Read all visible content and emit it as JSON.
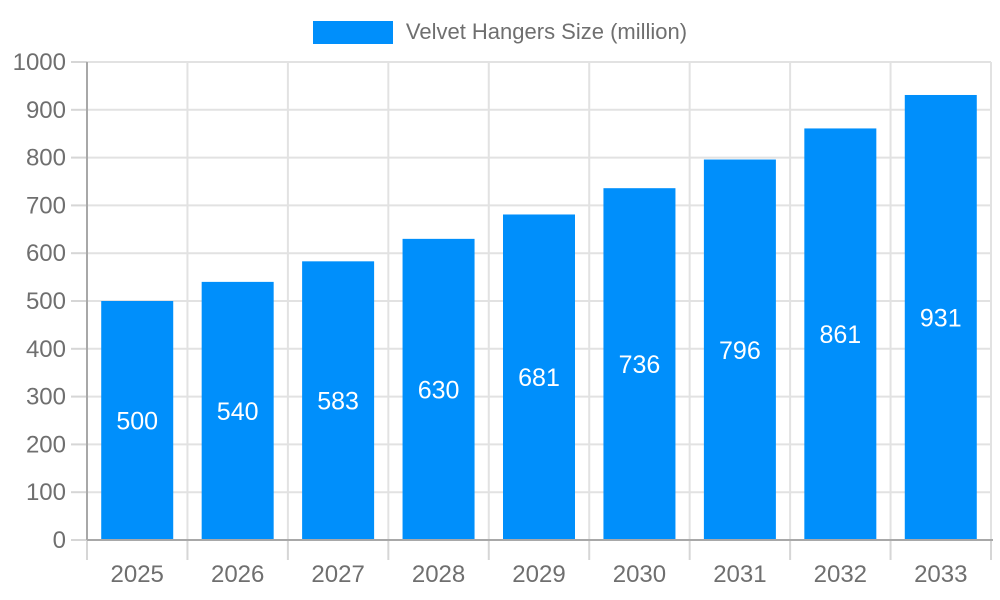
{
  "chart_data": {
    "type": "bar",
    "title": "Velvet Hangers Size (million)",
    "categories": [
      "2025",
      "2026",
      "2027",
      "2028",
      "2029",
      "2030",
      "2031",
      "2032",
      "2033"
    ],
    "values": [
      500,
      540,
      583,
      630,
      681,
      736,
      796,
      861,
      931
    ],
    "xlabel": "",
    "ylabel": "",
    "ylim": [
      0,
      1000
    ],
    "y_ticks": [
      0,
      100,
      200,
      300,
      400,
      500,
      600,
      700,
      800,
      900,
      1000
    ],
    "grid": true,
    "legend_position": "top",
    "value_labels": "inside-center",
    "colors": {
      "bar": "#008FFB",
      "bar_value_text": "#ffffff",
      "axis_text": "#6f6f6f",
      "axis_line": "#a8a8a8",
      "grid_line": "#e2e2e2",
      "tick_line": "#d6d6d6",
      "background": "#ffffff"
    }
  }
}
